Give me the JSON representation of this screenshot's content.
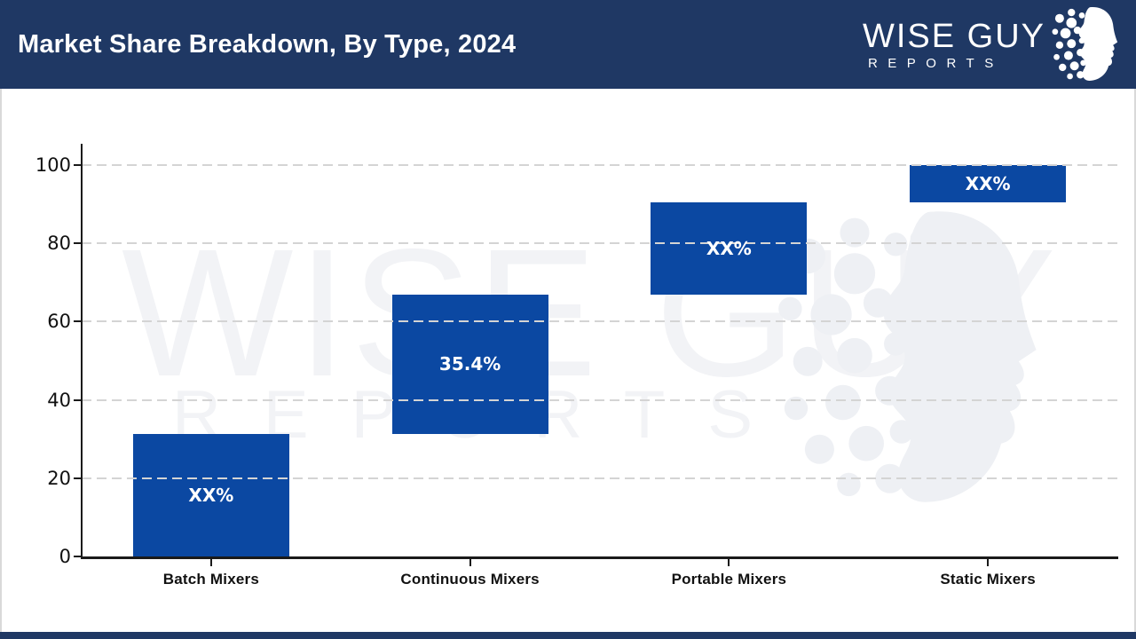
{
  "header": {
    "title": "Market Share Breakdown, By Type, 2024",
    "bg_color": "#1f3864",
    "brand": {
      "name": "WISE GUY",
      "sub": "REPORTS",
      "icon": "dotted-head-profile"
    }
  },
  "watermark": {
    "line1": "WISE GUY",
    "line2": "REPORTS",
    "icon": "dotted-head-profile",
    "color": "#f2f3f6"
  },
  "footer": {
    "bar_color": "#1f3864"
  },
  "chart_data": {
    "type": "bar",
    "subtype": "waterfall",
    "title": "Market Share Breakdown, By Type, 2024",
    "categories": [
      "Batch Mixers",
      "Continuous Mixers",
      "Portable Mixers",
      "Static Mixers"
    ],
    "segments": [
      {
        "category": "Batch Mixers",
        "start": 0,
        "end": 31.4,
        "label": "XX%"
      },
      {
        "category": "Continuous Mixers",
        "start": 31.4,
        "end": 66.8,
        "label": "35.4%"
      },
      {
        "category": "Portable Mixers",
        "start": 66.8,
        "end": 90.4,
        "label": "XX%"
      },
      {
        "category": "Static Mixers",
        "start": 90.4,
        "end": 100,
        "label": "XX%"
      }
    ],
    "ylabel": "",
    "xlabel": "",
    "yticks": [
      0,
      20,
      40,
      60,
      80,
      100
    ],
    "ylim": [
      0,
      105
    ],
    "grid": "horizontal-dashed",
    "legend": "none",
    "bar_color": "#0b48a2",
    "bar_label_color": "#ffffff",
    "gridline_color": "#d4d4d4",
    "axis_color": "#1a1a1a"
  }
}
